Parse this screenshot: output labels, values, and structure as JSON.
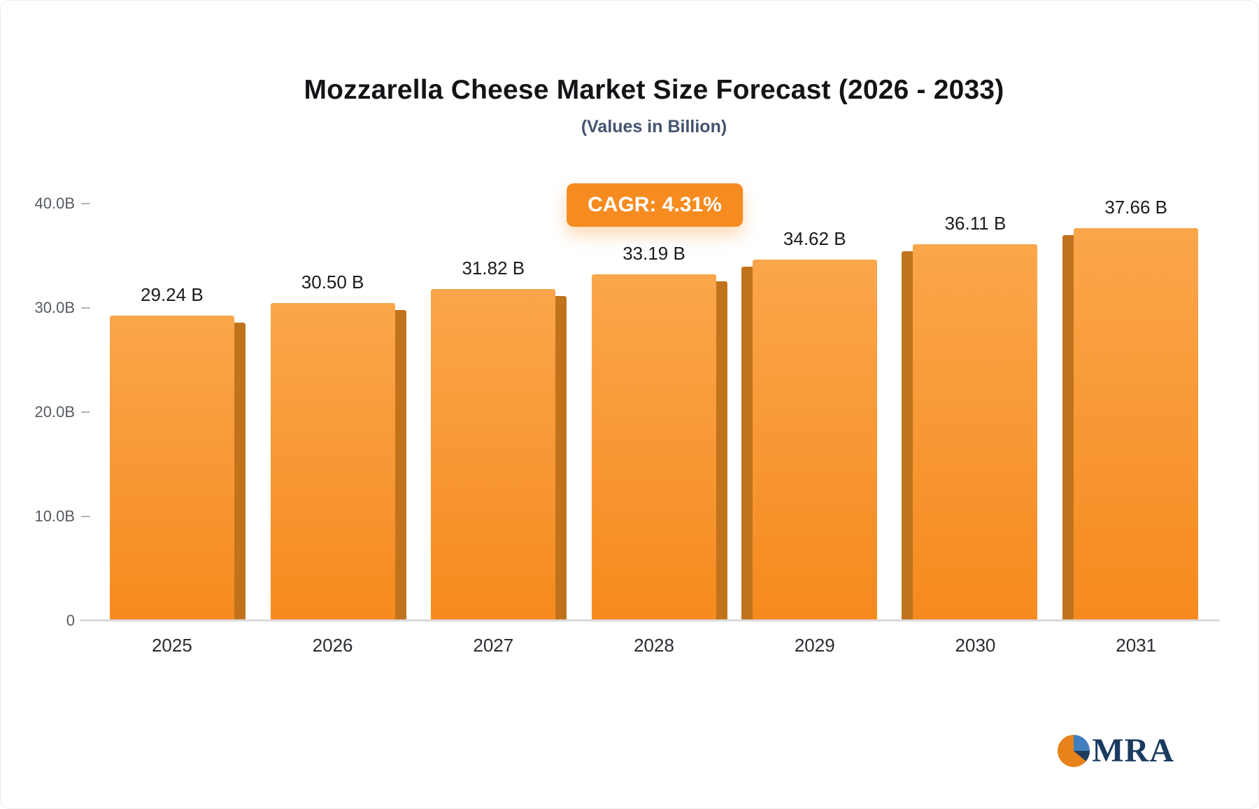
{
  "chart_data": {
    "type": "bar",
    "title": "Mozzarella Cheese Market Size Forecast (2026 - 2033)",
    "subtitle": "(Values in Billion)",
    "badge": "CAGR: 4.31%",
    "categories": [
      "2025",
      "2026",
      "2027",
      "2028",
      "2029",
      "2030",
      "2031"
    ],
    "values": [
      29.24,
      30.5,
      31.82,
      33.19,
      34.62,
      36.11,
      37.66
    ],
    "value_labels": [
      "29.24 B",
      "30.50 B",
      "31.82 B",
      "33.19 B",
      "34.62 B",
      "36.11 B",
      "37.66 B"
    ],
    "xlabel": "",
    "ylabel": "",
    "ylim": [
      0,
      40
    ],
    "yticks": [
      {
        "value": 40,
        "label": "40.0B"
      },
      {
        "value": 30,
        "label": "30.0B"
      },
      {
        "value": 20,
        "label": "20.0B"
      },
      {
        "value": 10,
        "label": "10.0B"
      },
      {
        "value": 0,
        "label": "0"
      }
    ],
    "grid": false,
    "legend": false,
    "colors": {
      "bar_top": "#FAA64B",
      "bar_bottom": "#F68A1E",
      "bar_side": "#BE6C10",
      "badge_bg": "#F68B1F",
      "title_text": "#141418",
      "subtitle_text": "#44546F"
    }
  },
  "logo": {
    "text": "MRA"
  }
}
